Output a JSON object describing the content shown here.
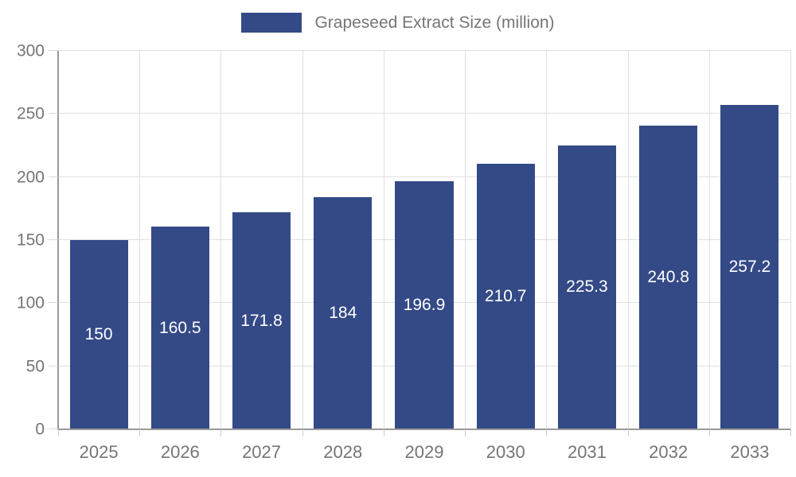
{
  "chart_data": {
    "type": "bar",
    "title": "",
    "legend_label": "Grapeseed Extract Size (million)",
    "legend_position": "top",
    "categories": [
      "2025",
      "2026",
      "2027",
      "2028",
      "2029",
      "2030",
      "2031",
      "2032",
      "2033"
    ],
    "series": [
      {
        "name": "Grapeseed Extract Size (million)",
        "values": [
          150,
          160.5,
          171.8,
          184,
          196.9,
          210.7,
          225.3,
          240.8,
          257.2
        ]
      }
    ],
    "value_labels": [
      "150",
      "160.5",
      "171.8",
      "184",
      "196.9",
      "210.7",
      "225.3",
      "240.8",
      "257.2"
    ],
    "xlabel": "",
    "ylabel": "",
    "ylim": [
      0,
      300
    ],
    "yticks": [
      0,
      50,
      100,
      150,
      200,
      250,
      300
    ],
    "grid": true,
    "colors": {
      "bar": "#344a87",
      "grid": "#e0e0e0",
      "axis": "#999999",
      "tick": "#cccccc",
      "axis_text": "#757575",
      "legend_text": "#757575",
      "value_text": "#ffffff",
      "background": "#ffffff"
    }
  }
}
